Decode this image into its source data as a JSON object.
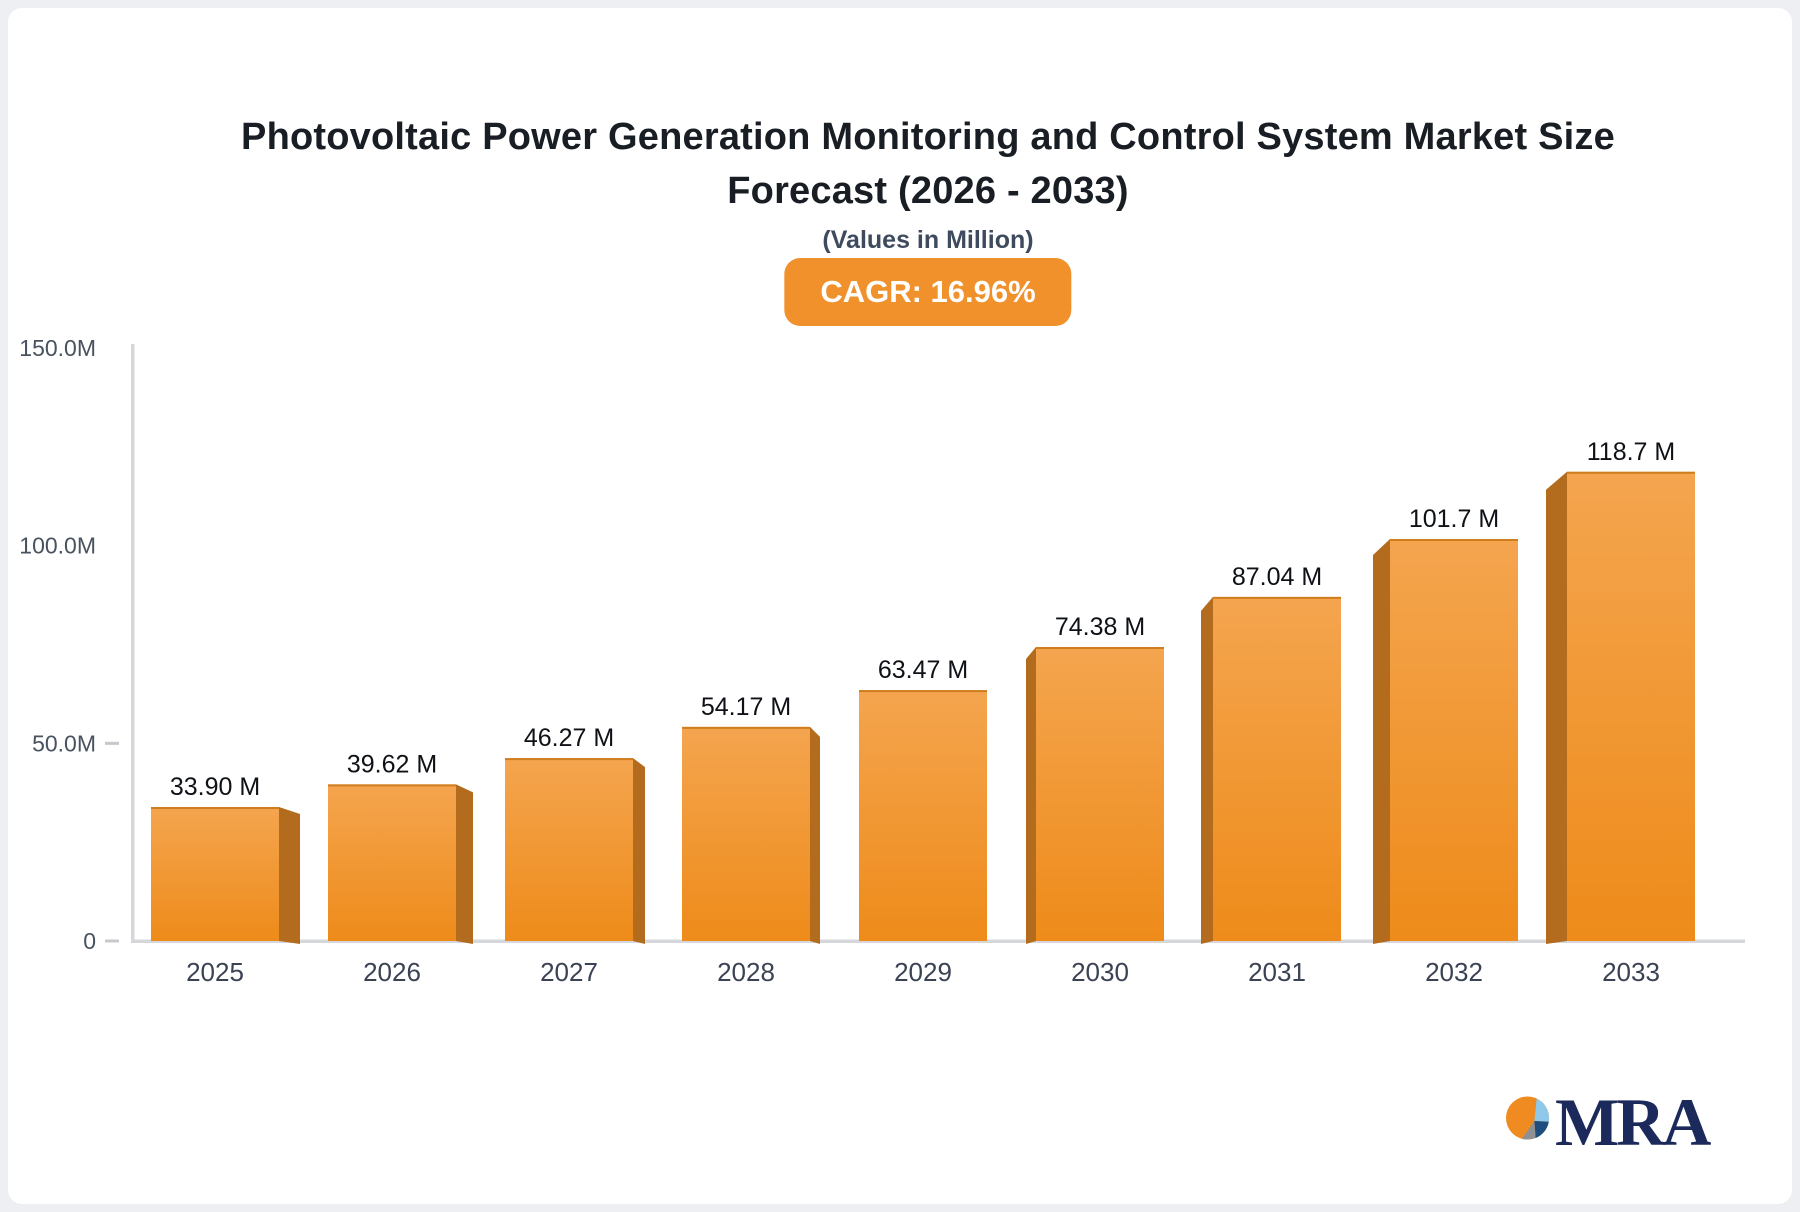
{
  "title_line1": "Photovoltaic Power Generation Monitoring and Control System Market Size",
  "title_line2": "Forecast (2026 - 2033)",
  "subtitle": "(Values in Million)",
  "badge": {
    "label": "CAGR: 16.96%",
    "bg_color": "#f0912c",
    "text_color": "#ffffff"
  },
  "chart_data": {
    "type": "bar",
    "title": "Photovoltaic Power Generation Monitoring and Control System Market Size Forecast (2026 - 2033)",
    "subtitle": "(Values in Million)",
    "categories": [
      "2025",
      "2026",
      "2027",
      "2028",
      "2029",
      "2030",
      "2031",
      "2032",
      "2033"
    ],
    "values": [
      33.9,
      39.62,
      46.27,
      54.17,
      63.47,
      74.38,
      87.04,
      101.7,
      118.7
    ],
    "value_labels": [
      "33.90 M",
      "39.62 M",
      "46.27 M",
      "54.17 M",
      "63.47 M",
      "74.38 M",
      "87.04 M",
      "101.7 M",
      "118.7 M"
    ],
    "ylabel": "",
    "xlabel": "",
    "ylim": [
      0,
      150
    ],
    "grid": false,
    "legend": "none",
    "y_axis": [
      {
        "label": "150.0M",
        "value": 150,
        "tick": false
      },
      {
        "label": "100.0M",
        "value": 100,
        "tick": false
      },
      {
        "label": "50.0M",
        "value": 50,
        "tick": true
      },
      {
        "label": "0",
        "value": 0,
        "tick": true
      }
    ],
    "colors": {
      "bar_top": "#f4a54f",
      "bar_bottom": "#ee8b1a",
      "bar_side": "#b36c1d",
      "bar_edge": "#cf7d1e",
      "axis_line": "#d5d7db",
      "tick": "#c6c8cd",
      "y_label": "#49525f",
      "x_label": "#3a4254",
      "value_label": "#0e1116"
    }
  },
  "logo": {
    "text": "MRA",
    "text_color": "#1b2a5b",
    "pie_orange": "#ef8b20",
    "pie_lightblue": "#8fc8e8",
    "pie_navy": "#1e4d7e",
    "pie_gray": "#8e9094"
  }
}
